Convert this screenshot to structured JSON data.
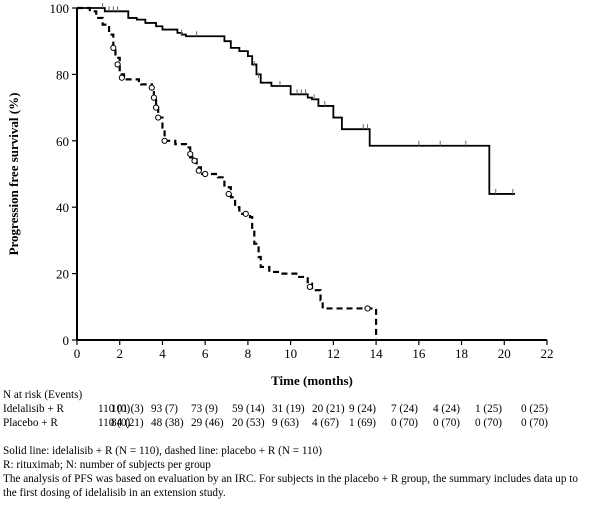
{
  "chart_data": {
    "type": "line",
    "xlabel": "Time (months)",
    "ylabel": "Progression free survival (%)",
    "xlim": [
      0,
      22
    ],
    "ylim": [
      0,
      100
    ],
    "xticks": [
      "0",
      "2",
      "4",
      "6",
      "8",
      "10",
      "12",
      "14",
      "16",
      "18",
      "20",
      "22"
    ],
    "yticks": [
      "0",
      "20",
      "40",
      "60",
      "80",
      "100"
    ],
    "grid": false,
    "series": [
      {
        "name": "idelalisib + R",
        "style": "solid",
        "points": [
          [
            0,
            100
          ],
          [
            1.2,
            100
          ],
          [
            1.3,
            99
          ],
          [
            2.1,
            99
          ],
          [
            2.4,
            97
          ],
          [
            2.8,
            96.5
          ],
          [
            3.2,
            95.5
          ],
          [
            3.7,
            94.5
          ],
          [
            4.0,
            93.5
          ],
          [
            4.7,
            92.5
          ],
          [
            4.9,
            92
          ],
          [
            5.1,
            91.5
          ],
          [
            6.2,
            91.5
          ],
          [
            6.9,
            90
          ],
          [
            7.2,
            88
          ],
          [
            7.6,
            87
          ],
          [
            8.0,
            85.5
          ],
          [
            8.2,
            83
          ],
          [
            8.4,
            80
          ],
          [
            8.6,
            77.5
          ],
          [
            9.1,
            76.5
          ],
          [
            9.6,
            76.5
          ],
          [
            10.0,
            74
          ],
          [
            10.7,
            74
          ],
          [
            10.8,
            73
          ],
          [
            11.0,
            72.5
          ],
          [
            11.3,
            70.5
          ],
          [
            11.8,
            70.5
          ],
          [
            12.0,
            67
          ],
          [
            12.4,
            63.5
          ],
          [
            13.5,
            63.5
          ],
          [
            13.7,
            58.5
          ],
          [
            19.3,
            58.5
          ],
          [
            19.3,
            44
          ],
          [
            20.5,
            44
          ]
        ],
        "censor_marks": [
          [
            1.2,
            100
          ],
          [
            1.5,
            99
          ],
          [
            1.7,
            99
          ],
          [
            1.9,
            99
          ],
          [
            4.9,
            92
          ],
          [
            5.6,
            91.5
          ],
          [
            8.3,
            82.5
          ],
          [
            8.5,
            79
          ],
          [
            9.5,
            76.5
          ],
          [
            10.3,
            74
          ],
          [
            10.5,
            74
          ],
          [
            10.7,
            74
          ],
          [
            11.1,
            72.5
          ],
          [
            11.6,
            70.5
          ],
          [
            13.4,
            63.5
          ],
          [
            13.6,
            63.5
          ],
          [
            16.0,
            58.5
          ],
          [
            17.0,
            58.5
          ],
          [
            18.2,
            58.5
          ],
          [
            19.6,
            44
          ],
          [
            20.4,
            44
          ]
        ]
      },
      {
        "name": "placebo + R",
        "style": "dashed",
        "points": [
          [
            0,
            100
          ],
          [
            0.6,
            99
          ],
          [
            0.9,
            97
          ],
          [
            1.2,
            95
          ],
          [
            1.5,
            92
          ],
          [
            1.7,
            88
          ],
          [
            1.8,
            85
          ],
          [
            2.0,
            80
          ],
          [
            2.2,
            78.5
          ],
          [
            2.7,
            78.5
          ],
          [
            2.9,
            78
          ],
          [
            3.0,
            77
          ],
          [
            3.5,
            76
          ],
          [
            3.6,
            73
          ],
          [
            3.7,
            70
          ],
          [
            3.8,
            67
          ],
          [
            4.0,
            64
          ],
          [
            4.1,
            60
          ],
          [
            4.6,
            59
          ],
          [
            5.1,
            58
          ],
          [
            5.3,
            55
          ],
          [
            5.6,
            52
          ],
          [
            5.8,
            50
          ],
          [
            6.6,
            49
          ],
          [
            6.9,
            46
          ],
          [
            7.2,
            43
          ],
          [
            7.4,
            40
          ],
          [
            7.6,
            38
          ],
          [
            8.1,
            37
          ],
          [
            8.2,
            33
          ],
          [
            8.3,
            29
          ],
          [
            8.5,
            25
          ],
          [
            8.6,
            22
          ],
          [
            9.0,
            20.5
          ],
          [
            9.5,
            20
          ],
          [
            10.4,
            19
          ],
          [
            10.8,
            17
          ],
          [
            11.0,
            15
          ],
          [
            11.4,
            12
          ],
          [
            11.5,
            9.5
          ],
          [
            13.7,
            9.5
          ],
          [
            14.0,
            4
          ],
          [
            14.0,
            0
          ]
        ],
        "censor_marks": [
          [
            1.7,
            88
          ],
          [
            1.9,
            83
          ],
          [
            2.1,
            79
          ],
          [
            3.5,
            76
          ],
          [
            3.6,
            73
          ],
          [
            3.7,
            70
          ],
          [
            3.8,
            67
          ],
          [
            4.1,
            60
          ],
          [
            5.3,
            56
          ],
          [
            5.5,
            54
          ],
          [
            5.7,
            51
          ],
          [
            6.0,
            50
          ],
          [
            7.1,
            44
          ],
          [
            7.9,
            38
          ],
          [
            10.9,
            16
          ],
          [
            13.6,
            9.5
          ]
        ]
      }
    ]
  },
  "risk_table": {
    "header": "N at risk (Events)",
    "rows": [
      {
        "label": "Idelalisib + R",
        "cells": [
          "110 (0)",
          "101 (3)",
          "93 (7)",
          "73 (9)",
          "59 (14)",
          "31 (19)",
          "20 (21)",
          "9 (24)",
          "7 (24)",
          "4 (24)",
          "1 (25)",
          "0 (25)"
        ]
      },
      {
        "label": "Placebo + R",
        "cells": [
          "110 (0)",
          "84 (21)",
          "48 (38)",
          "29 (46)",
          "20 (53)",
          "9 (63)",
          "4 (67)",
          "1 (69)",
          "0 (70)",
          "0 (70)",
          "0 (70)",
          "0 (70)"
        ]
      }
    ]
  },
  "notes": {
    "line1": "Solid line: idelalisib + R (N = 110), dashed line: placebo + R (N = 110)",
    "line2": "R: rituximab; N: number of subjects per group",
    "line3": "The analysis of PFS was based on evaluation by an IRC.  For subjects in the placebo + R group, the summary includes data up to the first dosing of idelalisib in an extension study."
  }
}
